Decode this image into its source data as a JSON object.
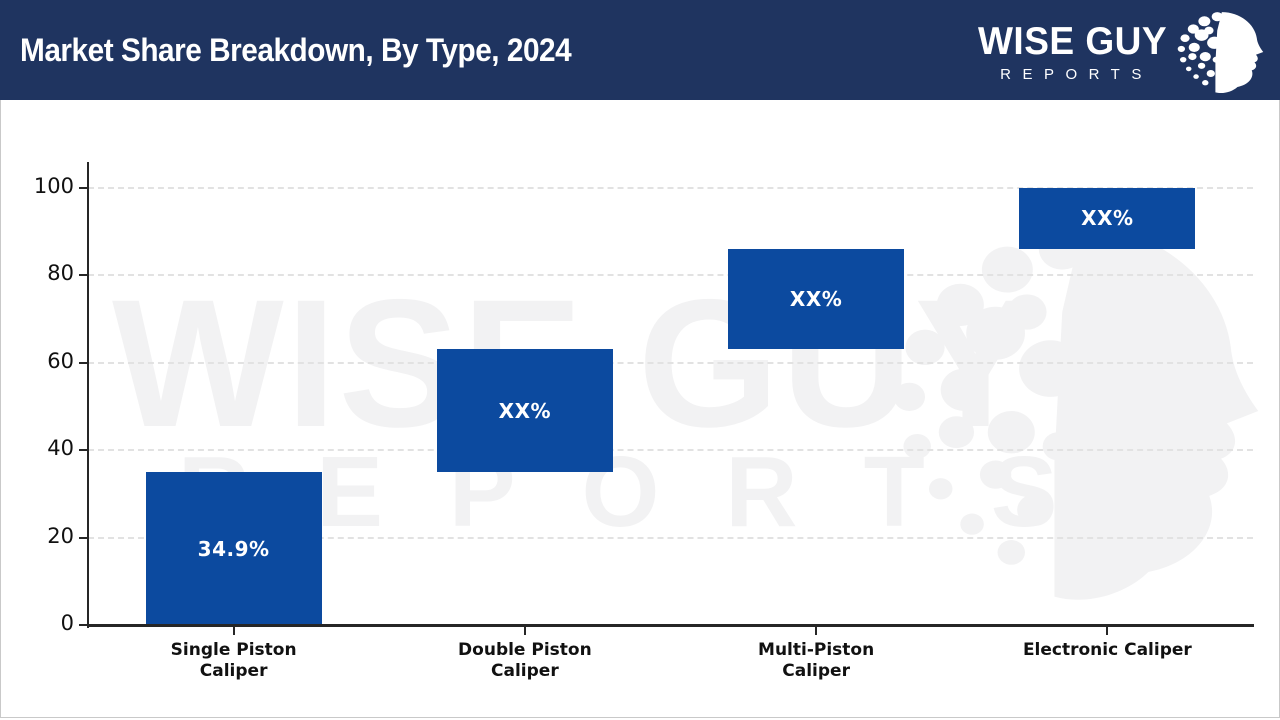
{
  "header": {
    "title": "Market Share Breakdown, By Type, 2024",
    "background_color": "#1f3460",
    "logo": {
      "name": "WISE GUY",
      "tagline": "REPORTS",
      "icon": "dotted-head-profile-icon"
    }
  },
  "watermark": {
    "name": "WISE GUY",
    "tagline": "REPORTS",
    "icon": "dotted-head-profile-icon",
    "color": "#f2f2f3"
  },
  "chart_data": {
    "type": "bar",
    "subtype": "stacked-waterfall",
    "title": "Market Share Breakdown, By Type, 2024",
    "categories": [
      "Single Piston Caliper",
      "Double Piston Caliper",
      "Multi-Piston Caliper",
      "Electronic Caliper"
    ],
    "category_labels": [
      "Single Piston\nCaliper",
      "Double Piston\nCaliper",
      "Multi-Piston\nCaliper",
      "Electronic Caliper"
    ],
    "segments": [
      {
        "category": "Single Piston Caliper",
        "start": 0,
        "end": 34.9,
        "label": "34.9%"
      },
      {
        "category": "Double Piston Caliper",
        "start": 34.9,
        "end": 63,
        "label": "XX%"
      },
      {
        "category": "Multi-Piston Caliper",
        "start": 63,
        "end": 86,
        "label": "XX%"
      },
      {
        "category": "Electronic Caliper",
        "start": 86,
        "end": 100,
        "label": "XX%"
      }
    ],
    "ylim": [
      0,
      100
    ],
    "yticks": [
      0,
      20,
      40,
      60,
      80,
      100
    ],
    "xlabel": "",
    "ylabel": "",
    "grid": "horizontal-dashed",
    "legend": "none",
    "bar_color": "#0c4a9f",
    "bar_label_color": "#ffffff"
  }
}
